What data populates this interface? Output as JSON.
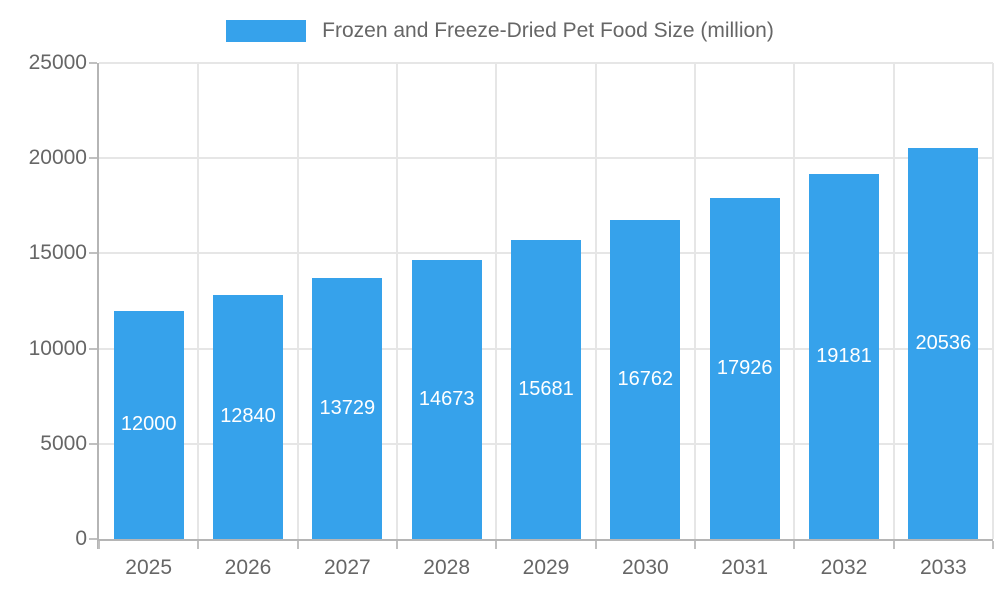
{
  "chart_data": {
    "type": "bar",
    "title": "Frozen and Freeze-Dried Pet Food Size (million)",
    "legend_label": "Frozen and Freeze-Dried Pet Food Size (million)",
    "legend_position": "top",
    "categories": [
      "2025",
      "2026",
      "2027",
      "2028",
      "2029",
      "2030",
      "2031",
      "2032",
      "2033"
    ],
    "values": [
      12000,
      12840,
      13729,
      14673,
      15681,
      16762,
      17926,
      19181,
      20536
    ],
    "value_labels": [
      "12000",
      "12840",
      "13729",
      "14673",
      "15681",
      "16762",
      "17926",
      "19181",
      "20536"
    ],
    "xlabel": "",
    "ylabel": "",
    "ylim": [
      0,
      25000
    ],
    "yticks": [
      0,
      5000,
      10000,
      15000,
      20000,
      25000
    ],
    "grid": true,
    "colors": {
      "bar": "#36A2EB",
      "grid": "#e6e6e6",
      "axis": "#b5b5b5",
      "text": "#666666",
      "value_label": "#ffffff",
      "background": "#ffffff"
    }
  }
}
